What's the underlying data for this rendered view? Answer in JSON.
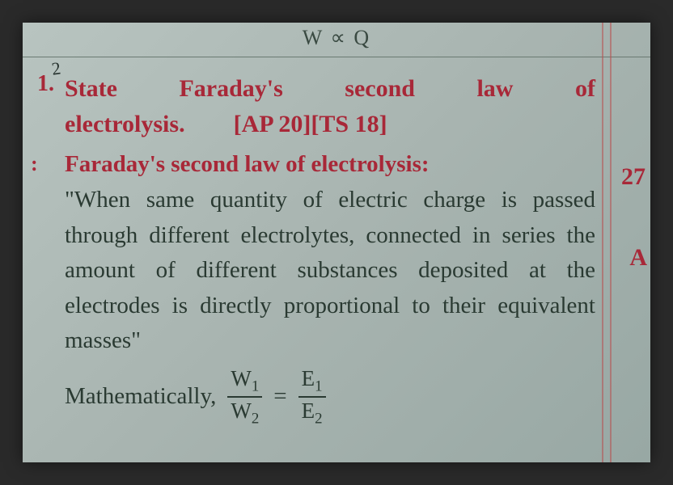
{
  "header_fragment": "W ∝ Q",
  "question_number": "1.",
  "handwritten_mark": "2",
  "question": {
    "line1_words": [
      "State",
      "Faraday's",
      "second",
      "law",
      "of"
    ],
    "line2_word": "electrolysis.",
    "tags": "[AP 20][TS 18]"
  },
  "answer_label": ":",
  "answer_heading": "Faraday's second law of electrolysis:",
  "answer_body": "\"When same quantity of electric charge is passed through different electrolytes, connected in series the amount of different substances deposited at the electrodes is directly proportional to their equivalent masses\"",
  "math": {
    "label": "Mathematically,",
    "w1": "W",
    "w1_sub": "1",
    "w2": "W",
    "w2_sub": "2",
    "eq": "=",
    "e1": "E",
    "e1_sub": "1",
    "e2": "E",
    "e2_sub": "2"
  },
  "side_fragments": {
    "f27": "27",
    "fA": "A"
  },
  "colors": {
    "heading": "#a82838",
    "body": "#2a3a32",
    "page_bg": "#a8b4b0",
    "frame_bg": "#2a2a2a",
    "rule": "#b85050"
  }
}
